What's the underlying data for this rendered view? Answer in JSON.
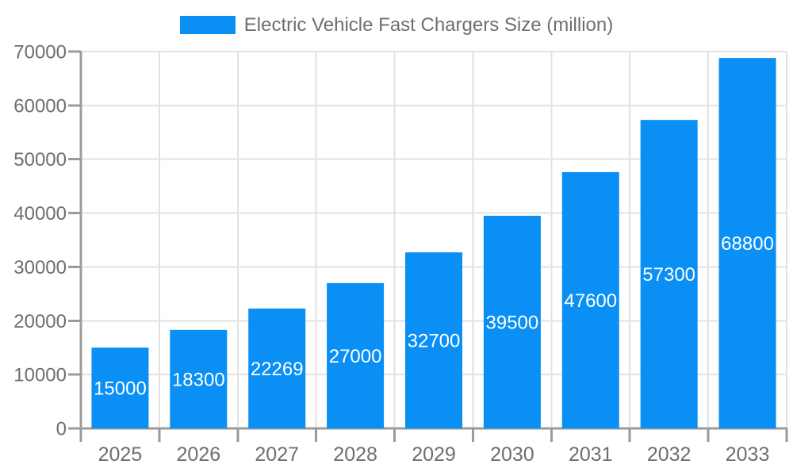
{
  "chart_data": {
    "type": "bar",
    "title": "",
    "series_label": "Electric Vehicle Fast Chargers Size (million)",
    "categories": [
      "2025",
      "2026",
      "2027",
      "2028",
      "2029",
      "2030",
      "2031",
      "2032",
      "2033"
    ],
    "values": [
      15000,
      18300,
      22269,
      27000,
      32700,
      39500,
      47600,
      57300,
      68800
    ],
    "ylim": [
      0,
      70000
    ],
    "ytick_step": 10000,
    "ytick_labels": [
      "0",
      "10000",
      "20000",
      "30000",
      "40000",
      "50000",
      "60000",
      "70000"
    ],
    "grid": true,
    "legend_position": "top",
    "bar_value_labels_shown": true
  },
  "colors": {
    "bar": "#0a8ff5",
    "bar_value_label": "#ffffff",
    "axis_text": "#6e6e6e",
    "grid_line": "#e2e2e2",
    "axis_line": "#9b9b9b",
    "background": "#ffffff"
  }
}
